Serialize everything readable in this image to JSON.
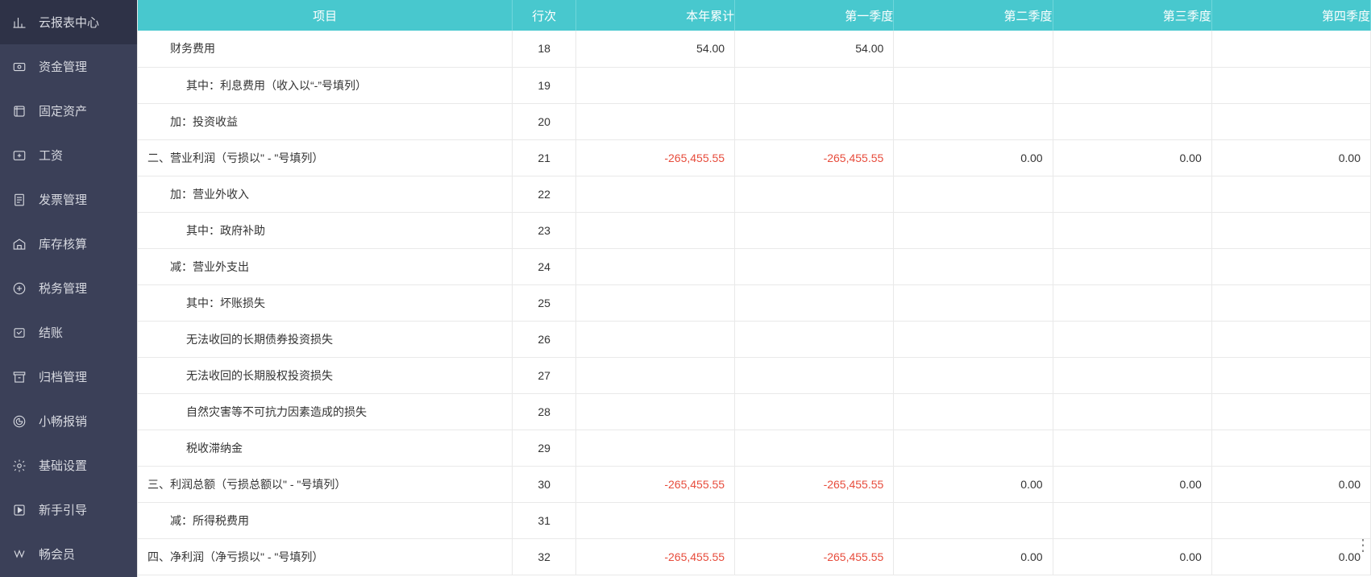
{
  "colors": {
    "sidebar_bg": "#3b4058",
    "sidebar_text": "#d7d9e0",
    "header_bg": "#48c8ce",
    "header_text": "#ffffff",
    "border": "#e9e9e9",
    "negative": "#e74c3c",
    "text": "#333333"
  },
  "sidebar": {
    "items": [
      {
        "icon": "chart",
        "label": "云报表中心"
      },
      {
        "icon": "money",
        "label": "资金管理"
      },
      {
        "icon": "asset",
        "label": "固定资产"
      },
      {
        "icon": "wage",
        "label": "工资"
      },
      {
        "icon": "invoice",
        "label": "发票管理"
      },
      {
        "icon": "stock",
        "label": "库存核算"
      },
      {
        "icon": "tax",
        "label": "税务管理"
      },
      {
        "icon": "close",
        "label": "结账"
      },
      {
        "icon": "archive",
        "label": "归档管理"
      },
      {
        "icon": "report",
        "label": "小畅报销"
      },
      {
        "icon": "settings",
        "label": "基础设置"
      },
      {
        "icon": "guide",
        "label": "新手引导"
      },
      {
        "icon": "vip",
        "label": "畅会员"
      }
    ]
  },
  "table": {
    "columns": [
      {
        "key": "item",
        "label": "项目",
        "class": "col-item"
      },
      {
        "key": "row",
        "label": "行次",
        "class": "col-row"
      },
      {
        "key": "ytd",
        "label": "本年累计",
        "class": "col-num"
      },
      {
        "key": "q1",
        "label": "第一季度",
        "class": "col-num"
      },
      {
        "key": "q2",
        "label": "第二季度",
        "class": "col-num"
      },
      {
        "key": "q3",
        "label": "第三季度",
        "class": "col-num"
      },
      {
        "key": "q4",
        "label": "第四季度",
        "class": "col-num"
      }
    ],
    "rows": [
      {
        "indent": 1,
        "item": "财务费用",
        "row": "18",
        "ytd": "54.00",
        "q1": "54.00",
        "q2": "",
        "q3": "",
        "q4": ""
      },
      {
        "indent": 2,
        "item": "其中：利息费用（收入以“-”号填列）",
        "row": "19",
        "ytd": "",
        "q1": "",
        "q2": "",
        "q3": "",
        "q4": ""
      },
      {
        "indent": 1,
        "item": "加：投资收益",
        "row": "20",
        "ytd": "",
        "q1": "",
        "q2": "",
        "q3": "",
        "q4": ""
      },
      {
        "indent": 0,
        "item": "二、营业利润（亏损以\" - \"号填列）",
        "row": "21",
        "ytd": "-265,455.55",
        "q1": "-265,455.55",
        "q2": "0.00",
        "q3": "0.00",
        "q4": "0.00"
      },
      {
        "indent": 1,
        "item": "加：营业外收入",
        "row": "22",
        "ytd": "",
        "q1": "",
        "q2": "",
        "q3": "",
        "q4": ""
      },
      {
        "indent": 2,
        "item": "其中：政府补助",
        "row": "23",
        "ytd": "",
        "q1": "",
        "q2": "",
        "q3": "",
        "q4": ""
      },
      {
        "indent": 1,
        "item": "减：营业外支出",
        "row": "24",
        "ytd": "",
        "q1": "",
        "q2": "",
        "q3": "",
        "q4": ""
      },
      {
        "indent": 2,
        "item": "其中：坏账损失",
        "row": "25",
        "ytd": "",
        "q1": "",
        "q2": "",
        "q3": "",
        "q4": ""
      },
      {
        "indent": 2,
        "item": "无法收回的长期债券投资损失",
        "row": "26",
        "ytd": "",
        "q1": "",
        "q2": "",
        "q3": "",
        "q4": ""
      },
      {
        "indent": 2,
        "item": "无法收回的长期股权投资损失",
        "row": "27",
        "ytd": "",
        "q1": "",
        "q2": "",
        "q3": "",
        "q4": ""
      },
      {
        "indent": 2,
        "item": "自然灾害等不可抗力因素造成的损失",
        "row": "28",
        "ytd": "",
        "q1": "",
        "q2": "",
        "q3": "",
        "q4": ""
      },
      {
        "indent": 2,
        "item": "税收滞纳金",
        "row": "29",
        "ytd": "",
        "q1": "",
        "q2": "",
        "q3": "",
        "q4": ""
      },
      {
        "indent": 0,
        "item": "三、利润总额（亏损总额以\" - \"号填列）",
        "row": "30",
        "ytd": "-265,455.55",
        "q1": "-265,455.55",
        "q2": "0.00",
        "q3": "0.00",
        "q4": "0.00"
      },
      {
        "indent": 1,
        "item": "减：所得税费用",
        "row": "31",
        "ytd": "",
        "q1": "",
        "q2": "",
        "q3": "",
        "q4": ""
      },
      {
        "indent": 0,
        "item": "四、净利润（净亏损以\" - \"号填列）",
        "row": "32",
        "ytd": "-265,455.55",
        "q1": "-265,455.55",
        "q2": "0.00",
        "q3": "0.00",
        "q4": "0.00"
      }
    ]
  }
}
